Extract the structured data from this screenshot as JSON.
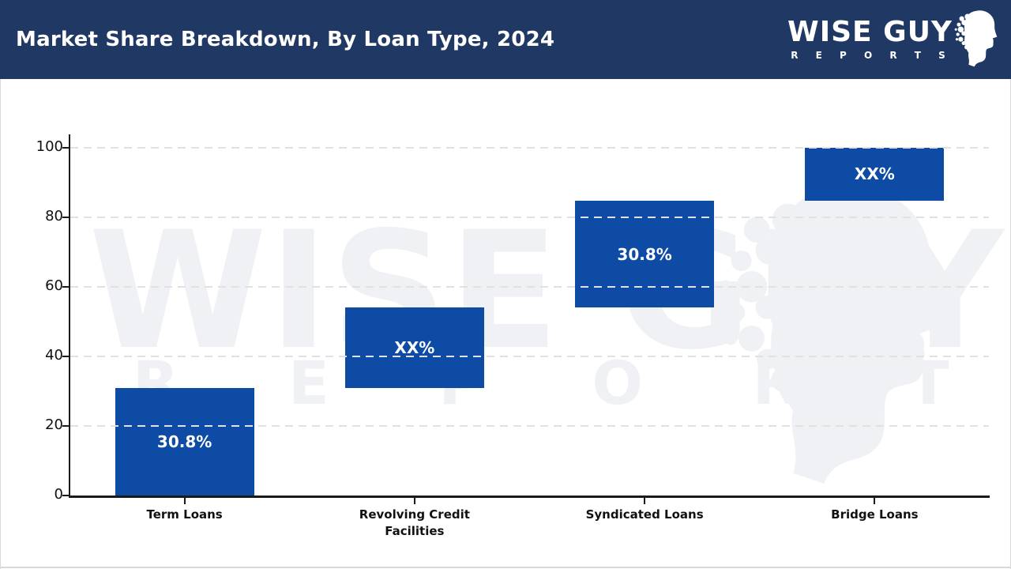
{
  "header": {
    "title": "Market Share Breakdown, By Loan Type, 2024",
    "logo": {
      "line1": "WISE GUY",
      "line2": "R E P O R T S"
    }
  },
  "watermark": {
    "line1": "WISE GUY",
    "line2": "R E P O R T S"
  },
  "chart_data": {
    "type": "bar",
    "subtype": "waterfall",
    "title": "Market Share Breakdown, By Loan Type, 2024",
    "categories": [
      {
        "lines": [
          "Term Loans"
        ]
      },
      {
        "lines": [
          "Revolving Credit",
          "Facilities"
        ]
      },
      {
        "lines": [
          "Syndicated Loans"
        ]
      },
      {
        "lines": [
          "Bridge Loans"
        ]
      }
    ],
    "segments": [
      {
        "start": 0,
        "end": 30.8,
        "label": "30.8%"
      },
      {
        "start": 30.8,
        "end": 54,
        "label": "XX%"
      },
      {
        "start": 54,
        "end": 84.8,
        "label": "30.8%"
      },
      {
        "start": 84.8,
        "end": 100,
        "label": "XX%"
      }
    ],
    "ylim": [
      0,
      100
    ],
    "yticks": [
      0,
      20,
      40,
      60,
      80,
      100
    ],
    "grid": {
      "axis": "y",
      "style": "dashed",
      "color": "#e1e1e1"
    },
    "legend": null
  },
  "colors": {
    "header_bg": "#203864",
    "bar": "#0d4ba5",
    "bar_label": "#ffffff",
    "axis": "#1a1a1a",
    "watermark": "#f0f1f4",
    "page_bg": "#ffffff",
    "border": "#d9d9d9"
  }
}
